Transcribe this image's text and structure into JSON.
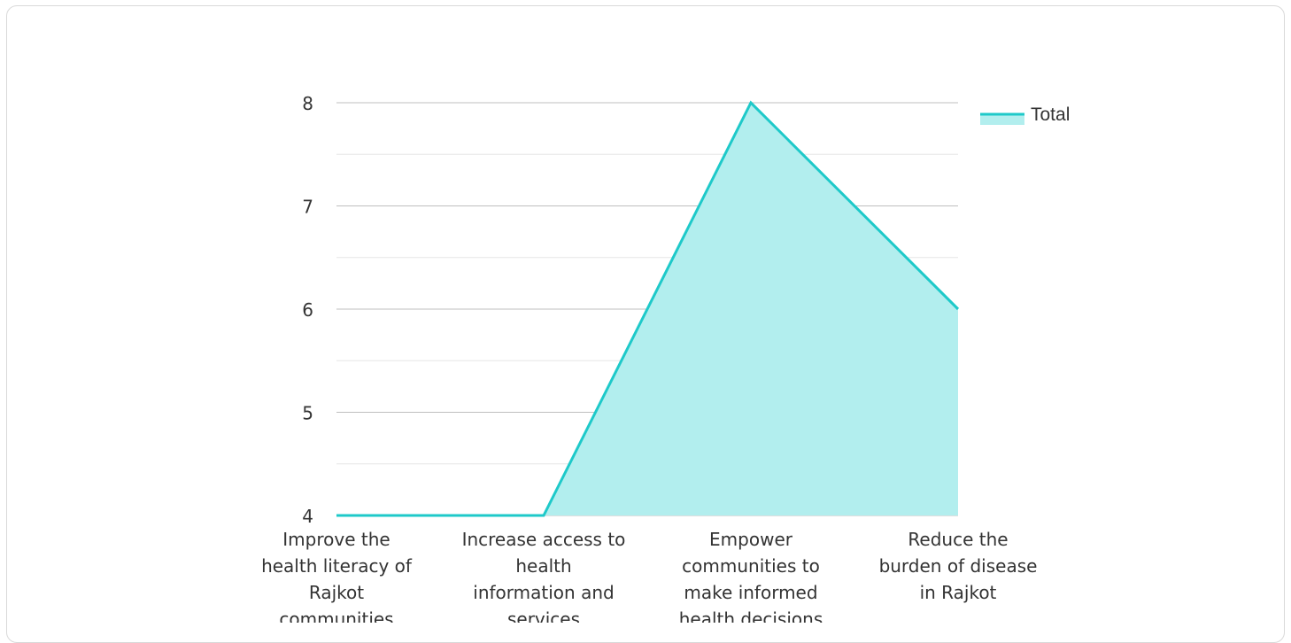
{
  "chart_data": {
    "type": "area",
    "categories": [
      "Improve the health literacy of Rajkot communities",
      "Increase access to health information and services",
      "Empower communities to make informed health decisions",
      "Reduce the burden of disease in Rajkot"
    ],
    "category_lines": [
      [
        "Improve the",
        "health literacy of",
        "Rajkot",
        "communities"
      ],
      [
        "Increase access to",
        "health",
        "information and",
        "services"
      ],
      [
        "Empower",
        "communities to",
        "make informed",
        "health decisions"
      ],
      [
        "Reduce the",
        "burden of disease",
        "in Rajkot"
      ]
    ],
    "series": [
      {
        "name": "Total",
        "values": [
          4,
          4,
          8,
          6
        ]
      }
    ],
    "ylim": [
      4,
      8
    ],
    "yticks": [
      4,
      5,
      6,
      7,
      8
    ],
    "minor_gridlines": true,
    "legend": "right",
    "colors": {
      "line": "#1ec9c9",
      "fill": "#b2eeee",
      "grid_major": "#bfbfbf",
      "grid_minor": "#e6e6e6"
    }
  }
}
